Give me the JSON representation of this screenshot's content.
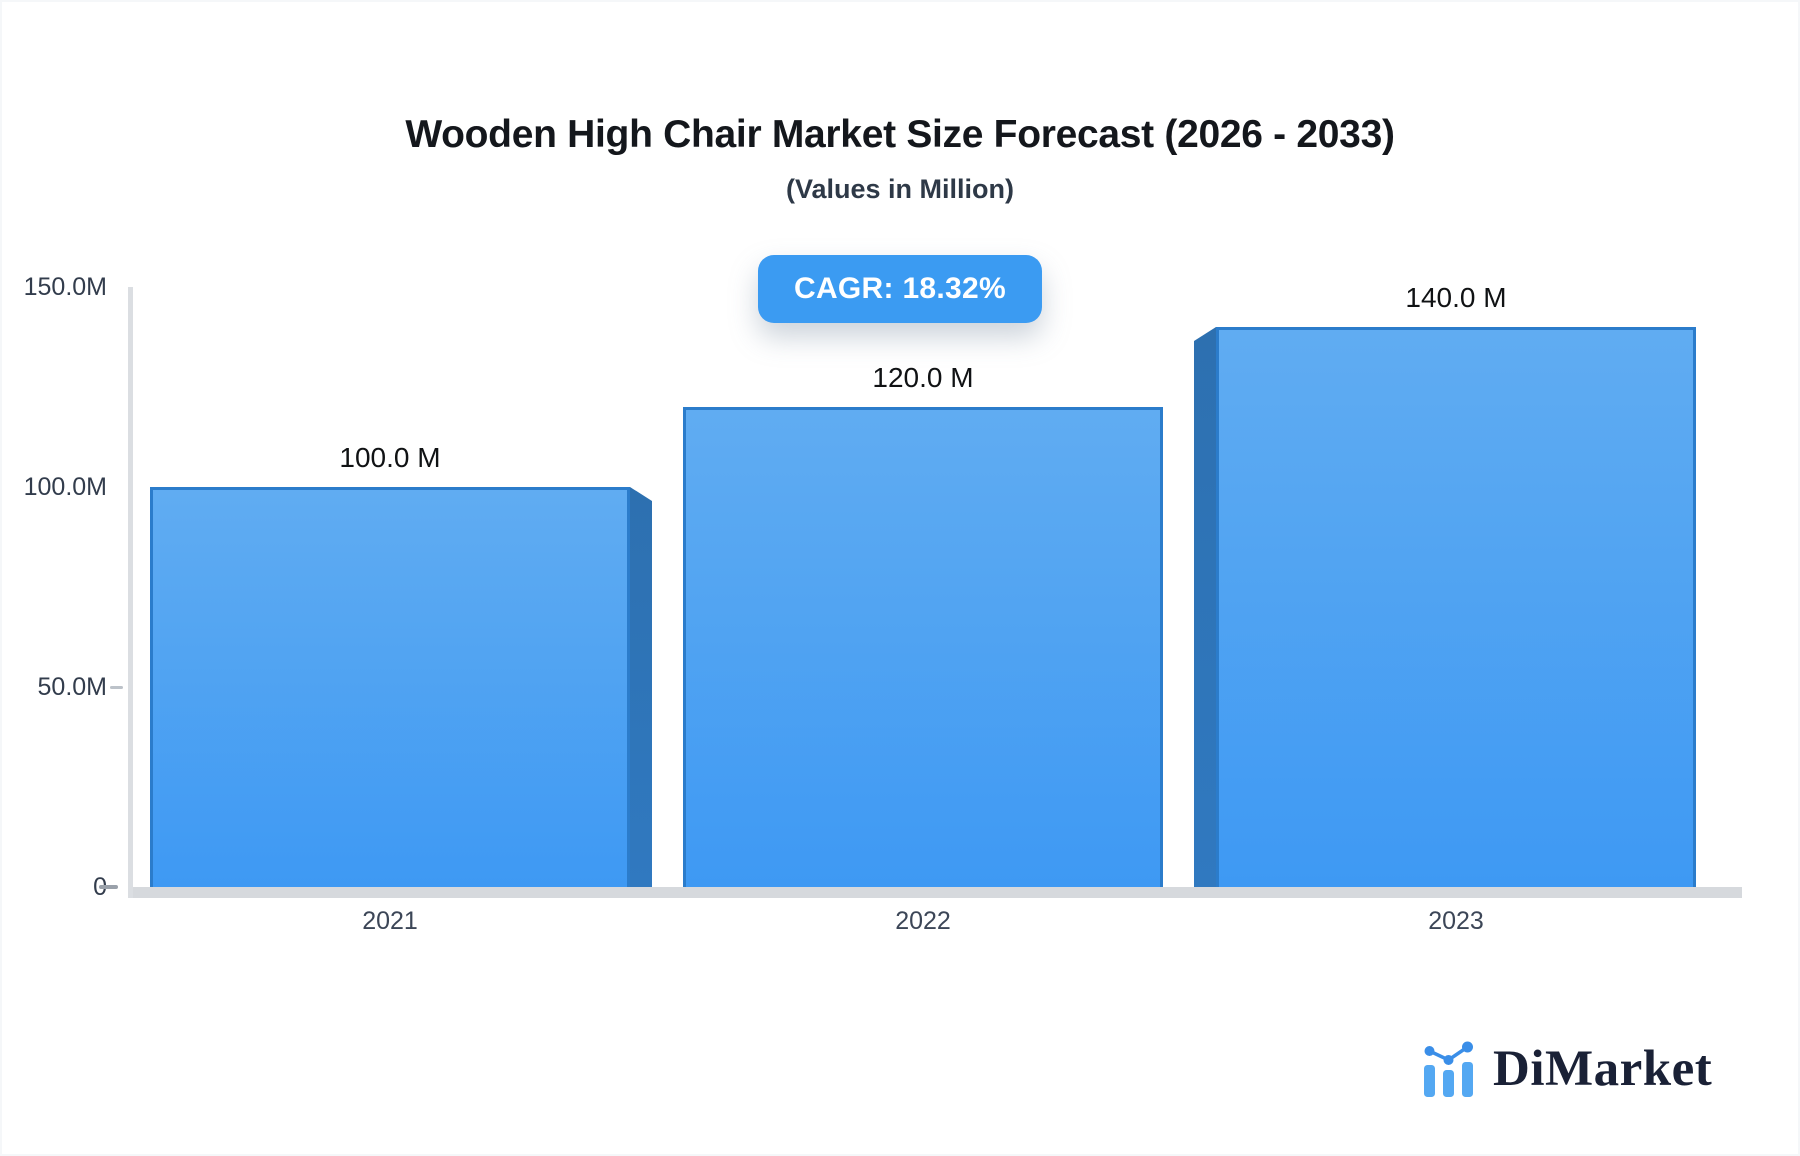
{
  "header": {
    "title": "Wooden High Chair Market Size Forecast (2026 - 2033)",
    "subtitle": "(Values in Million)",
    "cagr_label": "CAGR: 18.32%"
  },
  "chart_data": {
    "type": "bar",
    "title": "Wooden High Chair Market Size Forecast (2026 - 2033)",
    "subtitle": "(Values in Million)",
    "unit": "Million",
    "cagr": "18.32%",
    "categories": [
      "2021",
      "2022",
      "2023"
    ],
    "values": [
      100,
      120,
      140
    ],
    "value_labels": [
      "100.0 M",
      "120.0 M",
      "140.0 M"
    ],
    "ylim": [
      0,
      150
    ],
    "y_axis": [
      {
        "label": "150.0M",
        "value": 150,
        "tick": "none"
      },
      {
        "label": "100.0M",
        "value": 100,
        "tick": "none"
      },
      {
        "label": "50.0M",
        "value": 50,
        "tick": "short"
      },
      {
        "label": "0",
        "value": 0,
        "tick": "long"
      }
    ],
    "layout": {
      "grid": false,
      "legend": false,
      "shadow_sides": [
        "right",
        "none",
        "left"
      ]
    },
    "colors": {
      "bar_top": "#60acf2",
      "bar_bottom": "#3e99f3",
      "bar_border": "#2b7ccb",
      "bar_shadow_top": "#2d70b0",
      "bar_shadow_bottom": "#3079c0",
      "accent": "#3b9bf2",
      "axis": "#d7dade",
      "tick_short": "#bcc2c9",
      "tick_long": "#9aa1aa"
    }
  },
  "footer": {
    "logo_text": "DiMarket"
  }
}
